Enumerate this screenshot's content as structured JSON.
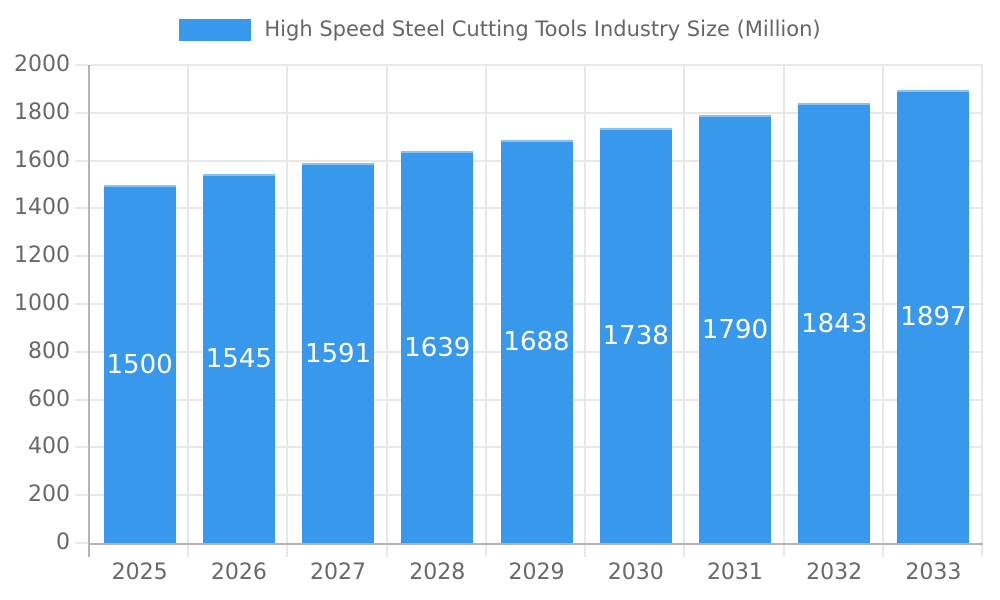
{
  "chart_data": {
    "type": "bar",
    "title": "High Speed Steel Cutting Tools Industry Size (Million)",
    "series": [
      {
        "name": "High Speed Steel Cutting Tools Industry Size (Million)",
        "values": [
          1500,
          1545,
          1591,
          1639,
          1688,
          1738,
          1790,
          1843,
          1897
        ]
      }
    ],
    "categories": [
      "2025",
      "2026",
      "2027",
      "2028",
      "2029",
      "2030",
      "2031",
      "2032",
      "2033"
    ],
    "xlabel": "",
    "ylabel": "",
    "ylim": [
      0,
      2000
    ],
    "ytick_step": 200,
    "grid": true,
    "legend_position": "top-center",
    "value_labels": "centered-inside-bars",
    "colors": {
      "bar": "#3898EC",
      "bar_top_border": "#8AC1F2",
      "grid": "#E8E8E8",
      "axis": "#B4B4B4",
      "tick_text": "#696969",
      "legend_text": "#666666",
      "value_text": "#FFFFFF",
      "background": "#FFFFFF"
    }
  }
}
